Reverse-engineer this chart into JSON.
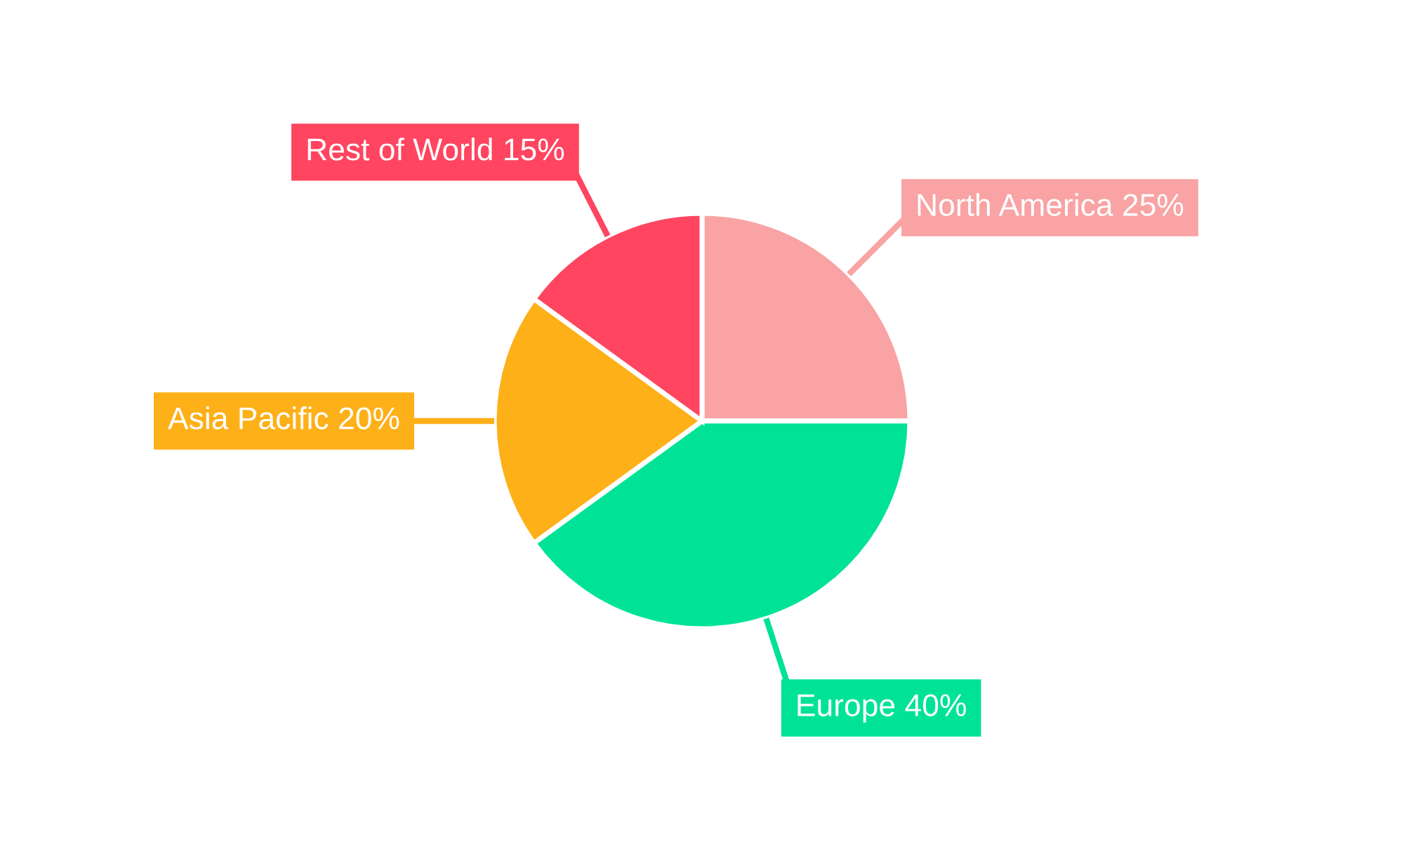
{
  "chart_data": {
    "type": "pie",
    "categories": [
      "North America",
      "Europe",
      "Asia Pacific",
      "Rest of World"
    ],
    "values": [
      25,
      40,
      20,
      15
    ],
    "value_labels": [
      "25%",
      "40%",
      "20%",
      "15%"
    ],
    "colors": [
      "#f9a3a4",
      "#00e396",
      "#feb019",
      "#ff4560"
    ],
    "legend": false
  }
}
